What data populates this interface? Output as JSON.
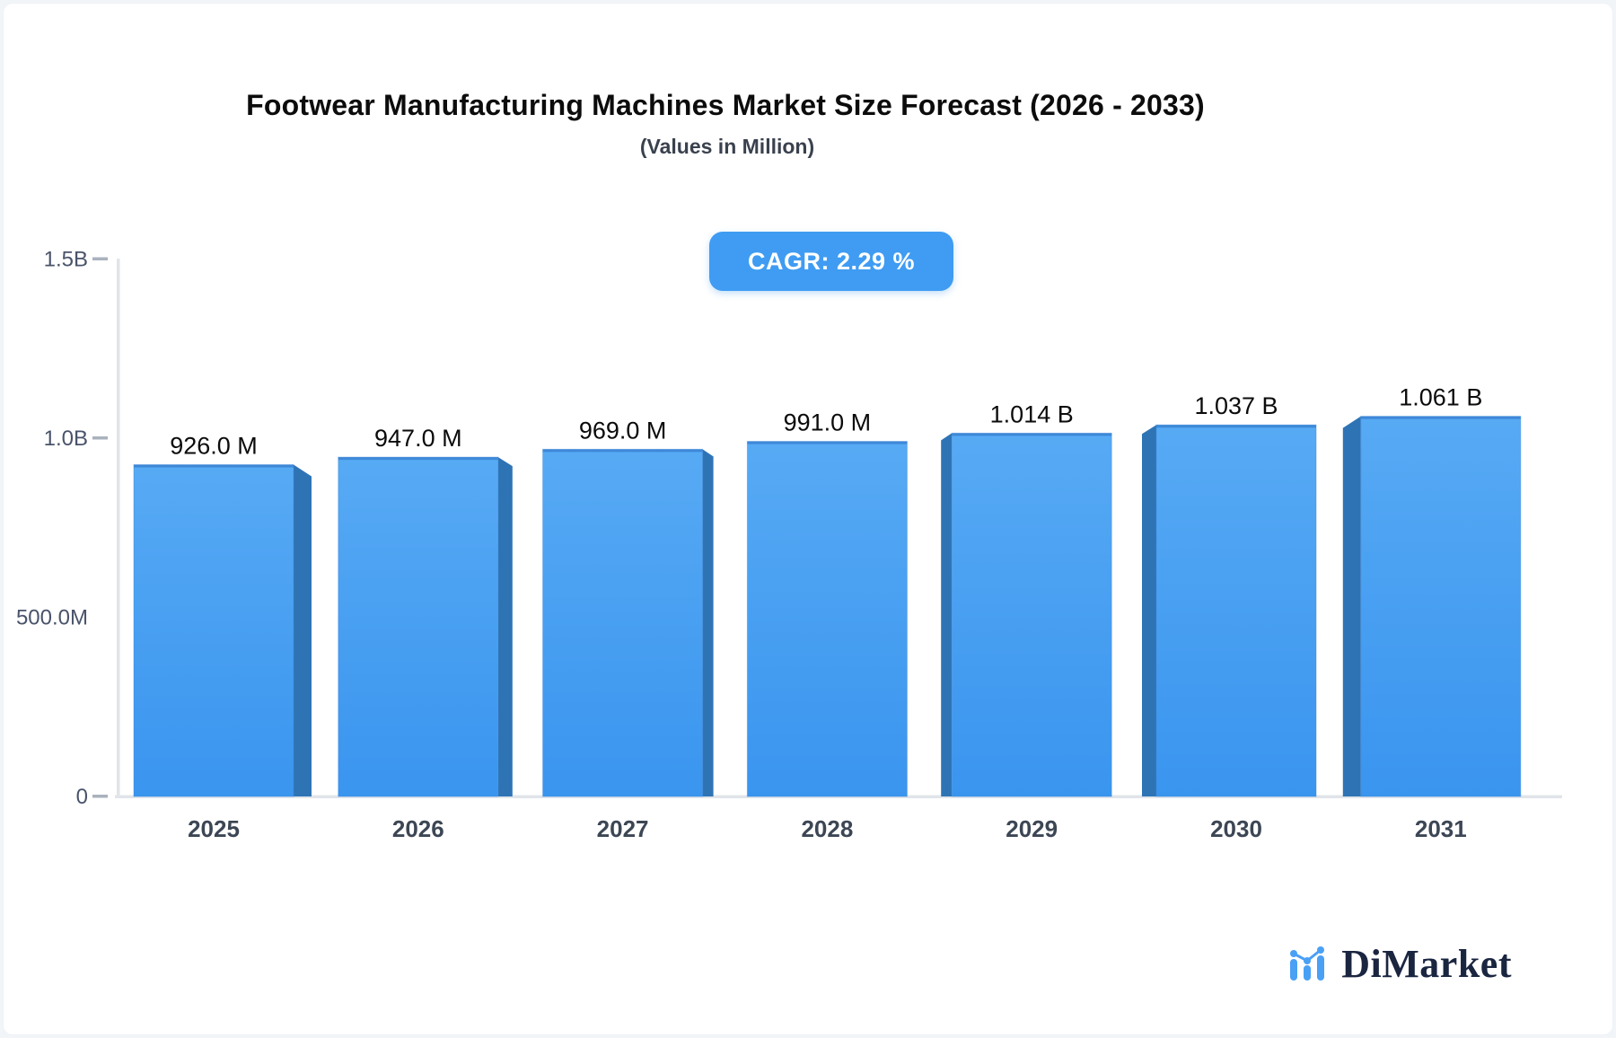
{
  "page": {
    "title": "Footwear Manufacturing Machines Market Size Forecast (2026 - 2033)",
    "subtitle": "(Values in Million)",
    "badge": {
      "label": "CAGR: 2.29 %"
    },
    "logo": {
      "text": "DiMarket",
      "icon": "mini-bar-chart-icon"
    }
  },
  "chart_data": {
    "type": "bar",
    "title": "Footwear Manufacturing Machines Market Size Forecast (2026 - 2033)",
    "subtitle": "(Values in Million)",
    "cagr_label": "CAGR: 2.29 %",
    "categories": [
      "2025",
      "2026",
      "2027",
      "2028",
      "2029",
      "2030",
      "2031"
    ],
    "values_million": [
      926,
      947,
      969,
      991,
      1014,
      1037,
      1061
    ],
    "value_labels": [
      "926.0 M",
      "947.0 M",
      "969.0 M",
      "991.0 M",
      "1.014 B",
      "1.037 B",
      "1.061 B"
    ],
    "unit": "Million",
    "ylim_million": [
      0,
      1500
    ],
    "yticks": [
      {
        "label": "1.5B",
        "value_million": 1500,
        "dash": true
      },
      {
        "label": "1.0B",
        "value_million": 1000,
        "dash": true
      },
      {
        "label": "500.0M",
        "value_million": 500,
        "dash": false
      },
      {
        "label": "0",
        "value_million": 0,
        "dash": true
      }
    ],
    "grid": false,
    "legend": "none",
    "colors": {
      "bar_face_top": "#57aaf4",
      "bar_face_bottom": "#3a95ef",
      "bar_side": "#2e74b5",
      "bar_top_edge": "#3e88d8",
      "axis_line": "#e1e5ea",
      "tick_dash": "#aab2bd",
      "value_label": "#0b0b0b",
      "x_label": "#3c4654",
      "y_label": "#49536a",
      "badge_bg": "#3f9cf2",
      "logo_blue": "#4aa0f5",
      "logo_navy": "#1a2540"
    }
  }
}
